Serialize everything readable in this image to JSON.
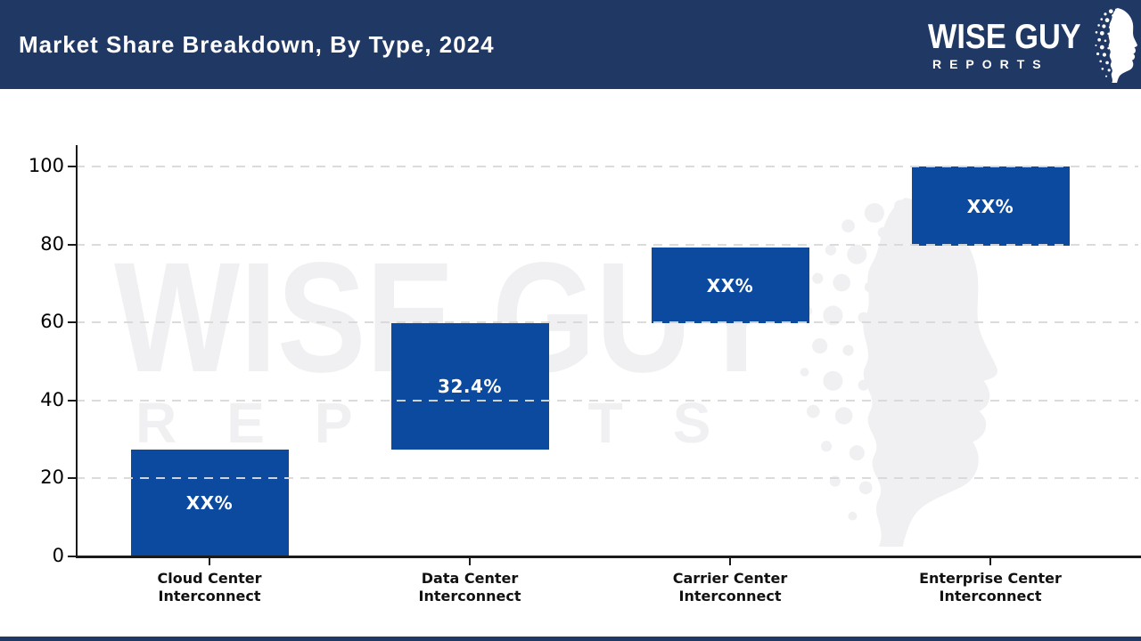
{
  "header": {
    "title": "Market Share Breakdown, By Type, 2024",
    "logo": {
      "line1": "WISE GUY",
      "line2": "REPORTS"
    },
    "bg_color": "#203864"
  },
  "watermark": {
    "line1": "WISE GUY",
    "line2": "REPORTS"
  },
  "chart_data": {
    "type": "bar",
    "subtype": "floating-waterfall",
    "title": "Market Share Breakdown, By Type, 2024",
    "categories": [
      [
        "Cloud Center",
        "Interconnect"
      ],
      [
        "Data Center",
        "Interconnect"
      ],
      [
        "Carrier Center",
        "Interconnect"
      ],
      [
        "Enterprise Center",
        "Interconnect"
      ]
    ],
    "series": [
      {
        "name": "Cloud Center Interconnect",
        "start": 0,
        "end": 27.4,
        "label": "XX%"
      },
      {
        "name": "Data Center Interconnect",
        "start": 27.4,
        "end": 59.8,
        "label": "32.4%",
        "value": 32.4
      },
      {
        "name": "Carrier Center Interconnect",
        "start": 59.8,
        "end": 79.2,
        "label": "XX%"
      },
      {
        "name": "Enterprise Center Interconnect",
        "start": 79.6,
        "end": 100,
        "label": "XX%"
      }
    ],
    "ylim": [
      0,
      100
    ],
    "yticks": [
      0,
      20,
      40,
      60,
      80,
      100
    ],
    "xlabel": "",
    "ylabel": "",
    "grid": "horizontal-dashed",
    "legend": "none",
    "bar_color": "#0b4a9f",
    "bar_label_color": "#ffffff",
    "grid_color": "#d9d9d9",
    "axis_color": "#1a1a1a"
  }
}
